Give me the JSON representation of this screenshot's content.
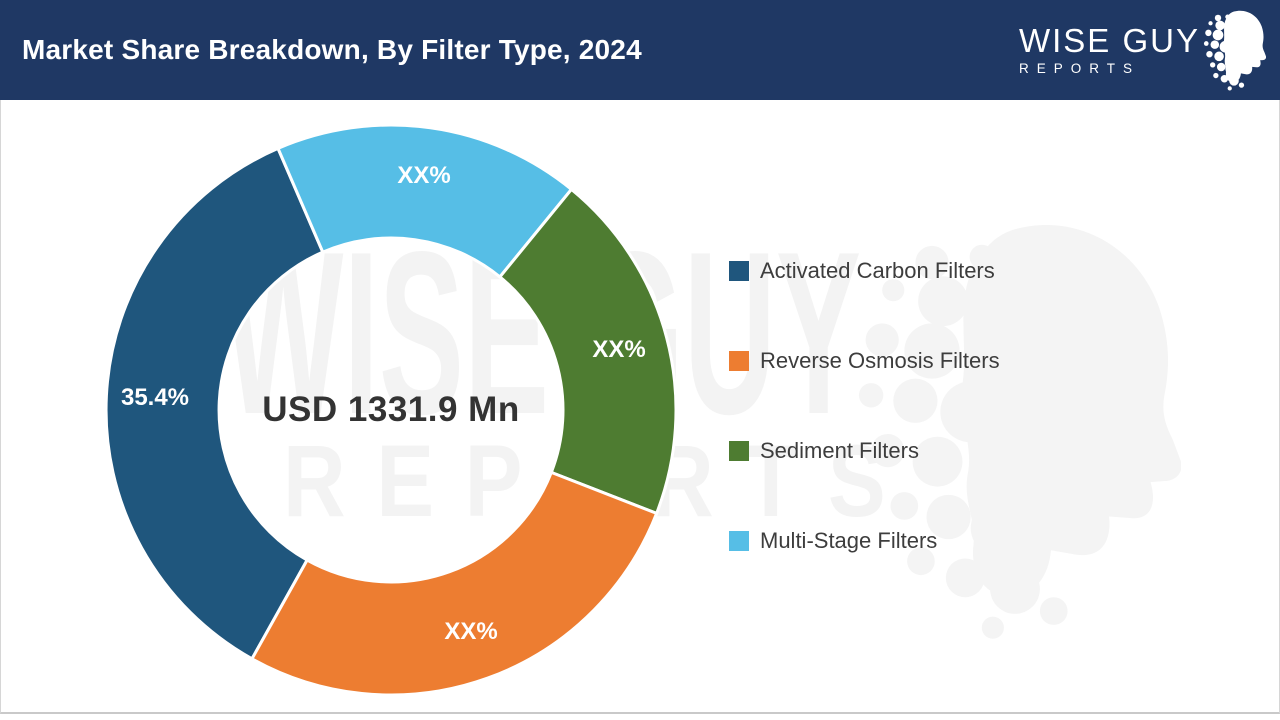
{
  "header": {
    "title": "Market Share Breakdown, By Filter Type, 2024",
    "logo": {
      "line1": "WISE GUY",
      "line2": "REPORTS"
    }
  },
  "watermark": {
    "line1": "WISE GUY",
    "line2": "REPORTS"
  },
  "chart_data": {
    "type": "pie",
    "variant": "donut",
    "title": "Market Share Breakdown, By Filter Type, 2024",
    "center_label": "USD 1331.9 Mn",
    "legend_position": "right",
    "segments": [
      {
        "label": "Activated Carbon Filters",
        "display_value": "35.4%",
        "value_pct": 35.4,
        "value_shown": true,
        "color": "#1f567d"
      },
      {
        "label": "Reverse Osmosis Filters",
        "display_value": "XX%",
        "value_pct": 27.2,
        "value_shown": false,
        "color": "#ed7d31"
      },
      {
        "label": "Sediment Filters",
        "display_value": "XX%",
        "value_pct": 20.0,
        "value_shown": false,
        "color": "#4e7c31"
      },
      {
        "label": "Multi-Stage Filters",
        "display_value": "XX%",
        "value_pct": 17.4,
        "value_shown": false,
        "color": "#56bee6"
      }
    ]
  }
}
